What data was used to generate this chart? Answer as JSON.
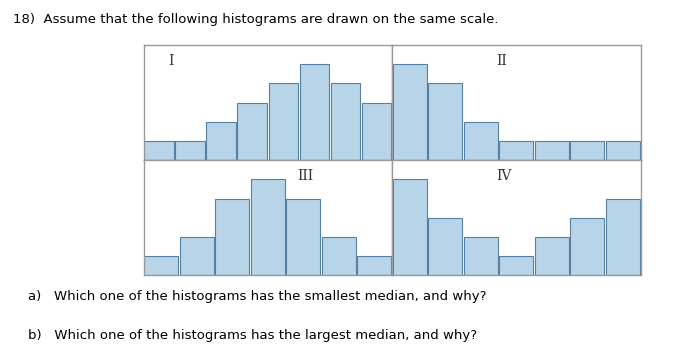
{
  "title_text": "18)  Assume that the following histograms are drawn on the same scale.",
  "question_a": "a)   Which one of the histograms has the smallest median, and why?",
  "question_b": "b)   Which one of the histograms has the largest median, and why?",
  "bar_color": "#b8d4e8",
  "bar_edge_color": "#5580a0",
  "background_color": "#ffffff",
  "hist_I": [
    1,
    1,
    2,
    3,
    4,
    5,
    4,
    3
  ],
  "hist_II": [
    5,
    4,
    2,
    1,
    1,
    1,
    1
  ],
  "hist_III": [
    1,
    2,
    4,
    5,
    4,
    2,
    1
  ],
  "hist_IV": [
    5,
    3,
    2,
    1,
    2,
    3,
    4
  ],
  "label_I": "I",
  "label_II": "II",
  "label_III": "III",
  "label_IV": "IV",
  "label_fontsize": 10,
  "label_color_dark": "#333333",
  "label_color_roman": "#6b1a1a"
}
